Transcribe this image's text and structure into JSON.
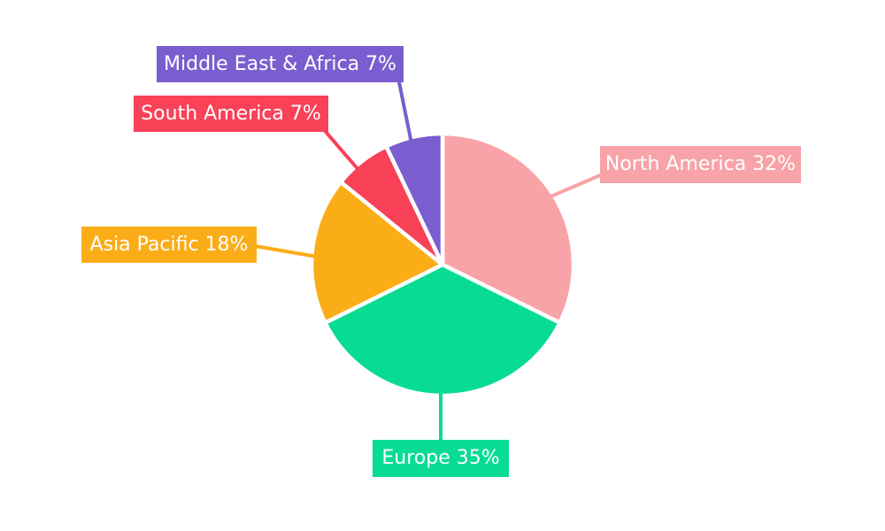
{
  "chart_data": {
    "type": "pie",
    "title": "",
    "unit": "%",
    "direction": "clockwise",
    "start_angle_deg": 0,
    "legend_position": "none",
    "labels_style": "external colored boxes with leader lines",
    "background_color": "#FFFFFF",
    "slice_border_color": "#FFFFFF",
    "label_text_color": "#FFFFFF",
    "slices": [
      {
        "label": "North America",
        "value": 32,
        "display": "North America 32%",
        "color": "#F8A3A7"
      },
      {
        "label": "Europe",
        "value": 35,
        "display": "Europe 35%",
        "color": "#08DC93"
      },
      {
        "label": "Asia Pacific",
        "value": 18,
        "display": "Asia Pacific 18%",
        "color": "#FBAD18"
      },
      {
        "label": "South America",
        "value": 7,
        "display": "South America 7%",
        "color": "#F94158"
      },
      {
        "label": "Middle East & Africa",
        "value": 7,
        "display": "Middle East & Africa 7%",
        "color": "#7A5ECF"
      }
    ]
  }
}
